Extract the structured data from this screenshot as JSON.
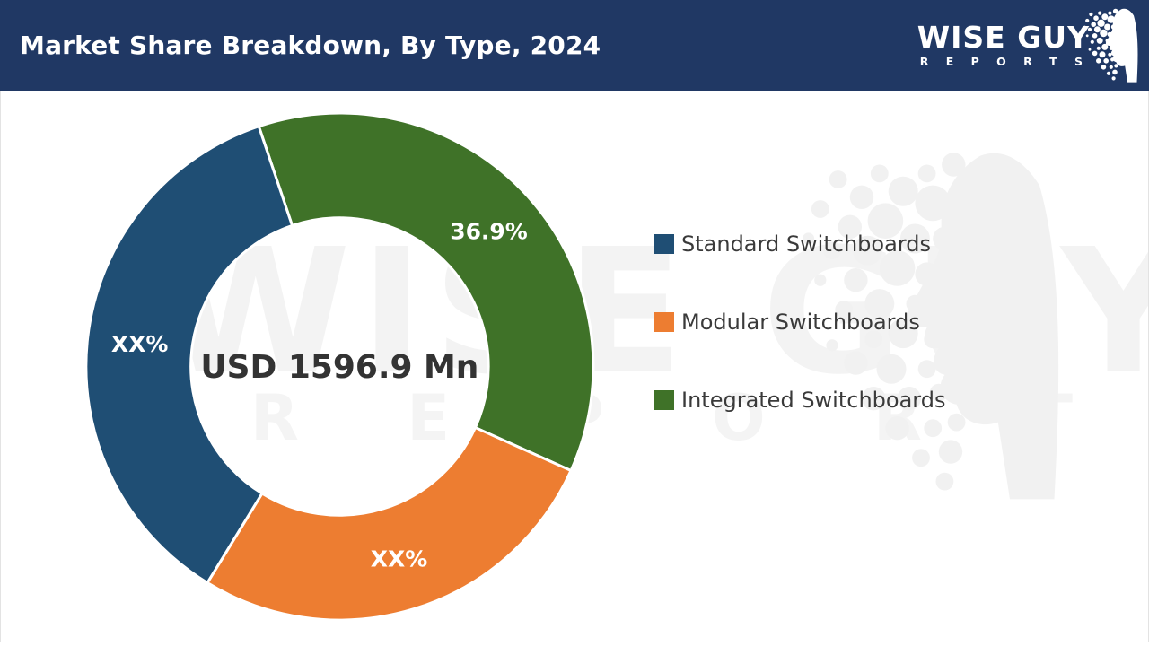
{
  "header": {
    "title": "Market Share Breakdown, By Type, 2024",
    "bg_color": "#203864",
    "brand": {
      "name": "WISE GUY",
      "tagline": "R E P O R T S"
    }
  },
  "watermark": {
    "line1": "WISE GUY",
    "line2": "R E P O R T S"
  },
  "chart_data": {
    "type": "pie",
    "variant": "donut",
    "title": "Market Share Breakdown, By Type, 2024",
    "center_label": "USD 1596.9 Mn",
    "legend_position": "right",
    "start_angle_deg": -18.6,
    "donut_hole_ratio": 0.585,
    "segments": [
      {
        "name": "Standard Switchboards",
        "value_pct": 36.1,
        "label": "XX%",
        "color": "#1f4e74"
      },
      {
        "name": "Modular Switchboards",
        "value_pct": 27.0,
        "label": "XX%",
        "color": "#ed7d31"
      },
      {
        "name": "Integrated Switchboards",
        "value_pct": 36.9,
        "label": "36.9%",
        "color": "#3f7228"
      }
    ],
    "draw_order": [
      2,
      1,
      0
    ],
    "colors": {
      "slice_label": "#ffffff",
      "center_label": "#333333",
      "legend_text": "#3a3a3a"
    }
  }
}
